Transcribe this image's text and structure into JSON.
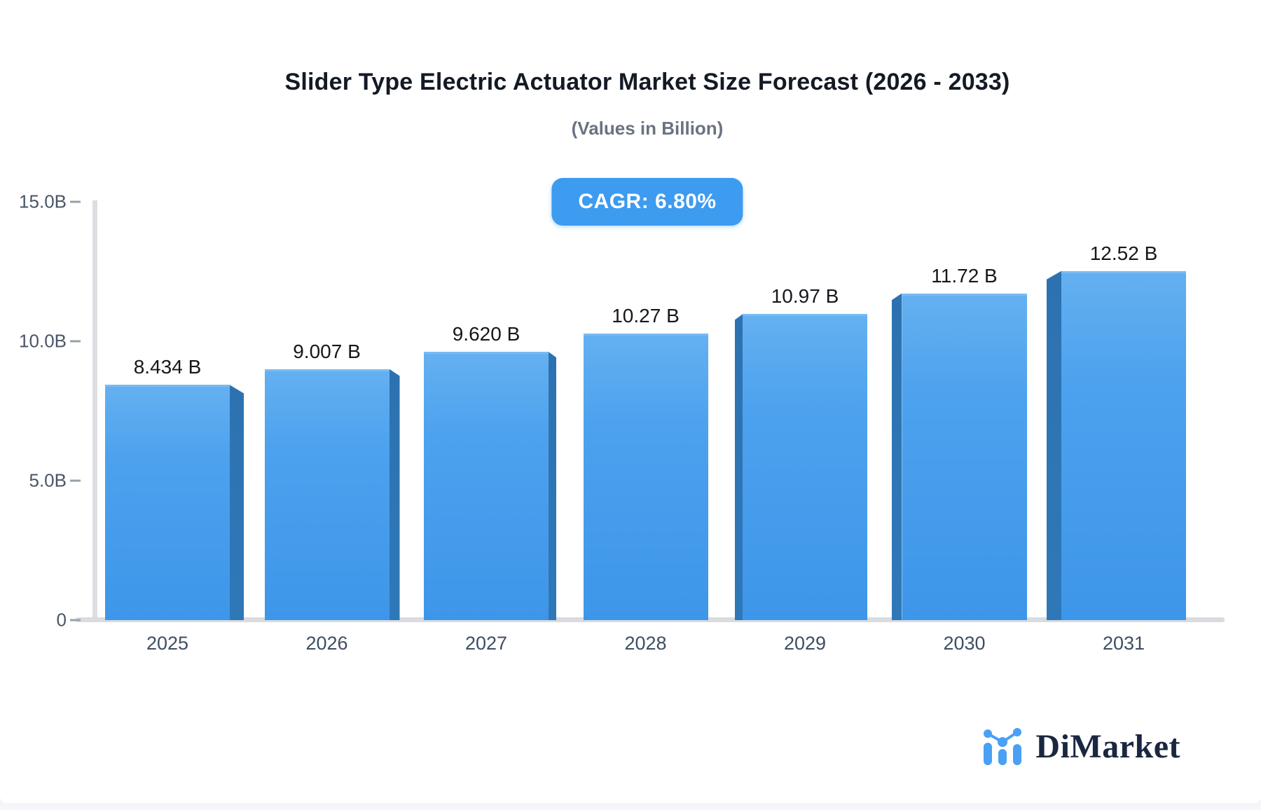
{
  "header": {
    "title": "Slider Type Electric Actuator Market Size Forecast (2026 - 2033)",
    "subtitle": "(Values in Billion)",
    "badge_label": "CAGR: 6.80%"
  },
  "colors": {
    "badge_bg": "#3d9bf0",
    "bar_face_top": "#64b0f1",
    "bar_face_bottom": "#3e96ea",
    "bar_side": "#2e76b5",
    "axis_line": "#dcdee3",
    "tick_text": "#4a5568",
    "logo_navy": "#1a2740",
    "logo_blue": "#4aa0f5"
  },
  "chart_data": {
    "type": "bar",
    "title": "Slider Type Electric Actuator Market Size Forecast (2026 - 2033)",
    "subtitle": "(Values in Billion)",
    "xlabel": "",
    "ylabel": "",
    "categories": [
      "2025",
      "2026",
      "2027",
      "2028",
      "2029",
      "2030",
      "2031"
    ],
    "values": [
      8.434,
      9.007,
      9.62,
      10.27,
      10.97,
      11.72,
      12.52
    ],
    "value_labels": [
      "8.434 B",
      "9.007 B",
      "9.620 B",
      "10.27 B",
      "10.97 B",
      "11.72 B",
      "12.52 B"
    ],
    "ylim": [
      0,
      15
    ],
    "yticks": [
      {
        "label": "15.0B",
        "value": 15
      },
      {
        "label": "10.0B",
        "value": 10
      },
      {
        "label": "5.0B",
        "value": 5
      },
      {
        "label": "0",
        "value": 0
      }
    ],
    "grid": false,
    "legend": false,
    "annotation": "CAGR: 6.80%"
  },
  "logo": {
    "text": "DiMarket",
    "icon": "bar-chart-logo-icon"
  }
}
